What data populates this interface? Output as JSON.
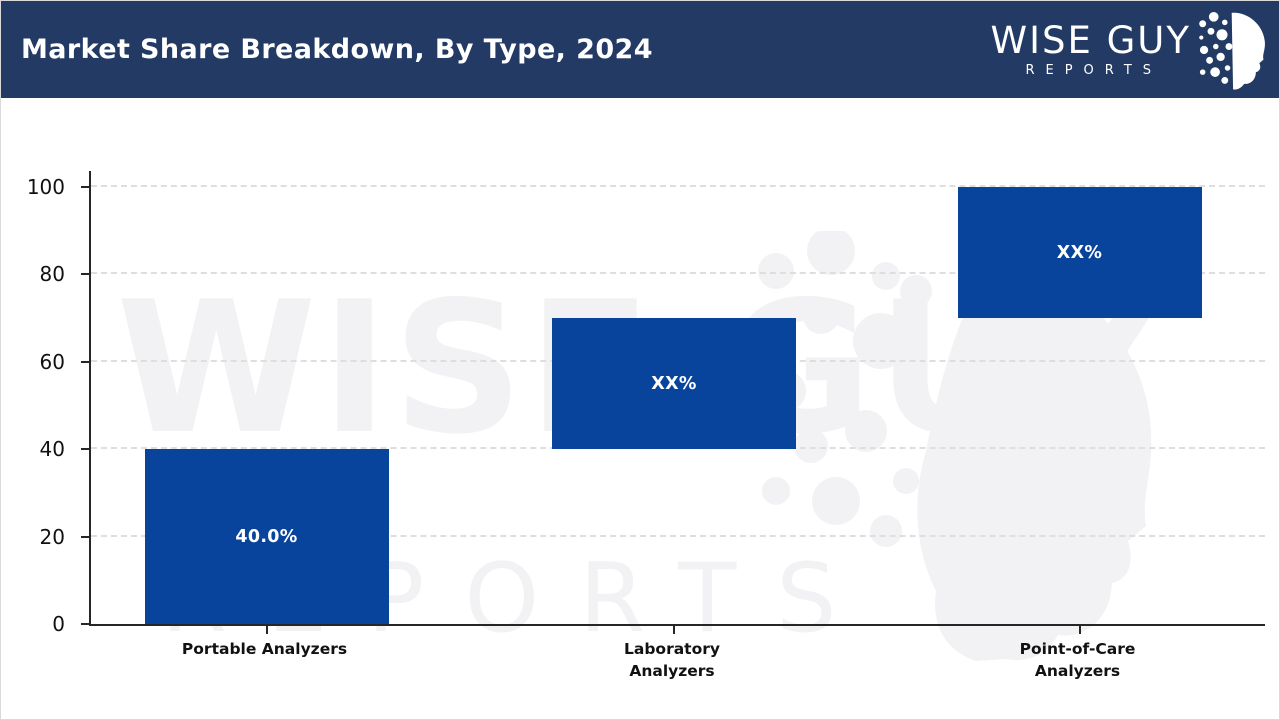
{
  "header": {
    "title": "Market Share Breakdown, By Type, 2024",
    "logo_line1": "WISE GUY",
    "logo_line2": "REPORTS",
    "bg_color": "#223a64"
  },
  "watermark": {
    "line1": "WISE GUY",
    "line2": "R E P O R T S"
  },
  "chart_data": {
    "type": "bar",
    "subtype": "floating-segment-bars",
    "title": "Market Share Breakdown, By Type, 2024",
    "categories": [
      "Portable Analyzers",
      "Laboratory Analyzers",
      "Point-of-Care Analyzers"
    ],
    "category_display": [
      "Portable Analyzers",
      "Laboratory\nAnalyzers",
      "Point-of-Care\nAnalyzers"
    ],
    "segments": [
      {
        "category": "Portable Analyzers",
        "from": 0,
        "to": 40,
        "label": "40.0%"
      },
      {
        "category": "Laboratory Analyzers",
        "from": 40,
        "to": 70,
        "label": "XX%"
      },
      {
        "category": "Point-of-Care Analyzers",
        "from": 70,
        "to": 100,
        "label": "XX%"
      }
    ],
    "ylim": [
      0,
      100
    ],
    "yticks": [
      0,
      20,
      40,
      60,
      80,
      100
    ],
    "xlabel": "",
    "ylabel": "",
    "grid": "horizontal-dashed",
    "legend": "none",
    "bar_color": "#08449c",
    "bar_label_color": "#ffffff",
    "axis_color": "#262626",
    "grid_color": "#dedede"
  }
}
